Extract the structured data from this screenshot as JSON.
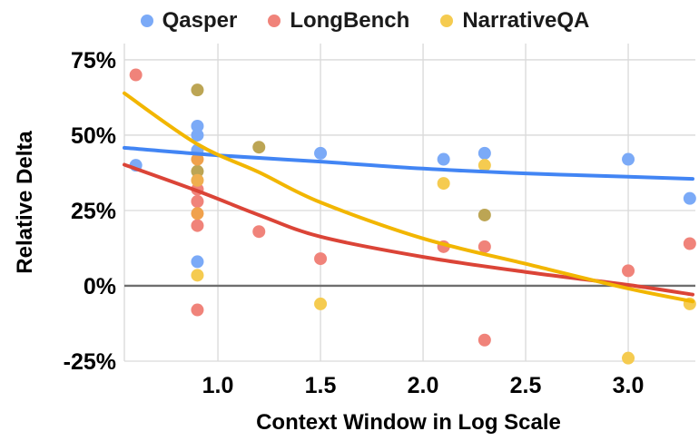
{
  "legend": {
    "position": "top",
    "items": [
      {
        "label": "Qasper",
        "color": "#7BAAF7"
      },
      {
        "label": "LongBench",
        "color": "#F0837A"
      },
      {
        "label": "NarrativeQA",
        "color": "#F5CB50"
      }
    ]
  },
  "chart_data": {
    "type": "scatter",
    "title": "",
    "xlabel": "Context Window in Log Scale",
    "ylabel": "Relative Delta",
    "xlim": [
      0.544,
      3.314
    ],
    "ylim": [
      -25,
      80.4
    ],
    "grid": true,
    "legend_position": "top",
    "x_ticks": [
      1.0,
      1.5,
      2.0,
      2.5,
      3.0
    ],
    "x_tick_labels": [
      "1.0",
      "1.5",
      "2.0",
      "2.5",
      "3.0"
    ],
    "y_ticks": [
      75,
      50,
      25,
      0,
      -25
    ],
    "y_tick_labels": [
      "75%",
      "50%",
      "25%",
      "0%",
      "-25%"
    ],
    "zero_line_color": "#6E6E6E",
    "gridline_color": "#D9D9D9",
    "series": [
      {
        "name": "Qasper",
        "point_color": "#7BAAF7",
        "line_color": "#4285F4",
        "points": [
          [
            0.6,
            40
          ],
          [
            0.9,
            53
          ],
          [
            0.9,
            50
          ],
          [
            0.9,
            45
          ],
          [
            0.9,
            8
          ],
          [
            1.5,
            44
          ],
          [
            2.1,
            42
          ],
          [
            2.3,
            44
          ],
          [
            3.0,
            42
          ],
          [
            3.3,
            29
          ]
        ],
        "trend": [
          [
            0.544,
            45.8
          ],
          [
            1.0,
            43.3
          ],
          [
            1.5,
            41.2
          ],
          [
            2.0,
            38.9
          ],
          [
            2.5,
            37.3
          ],
          [
            3.0,
            36.2
          ],
          [
            3.314,
            35.5
          ]
        ]
      },
      {
        "name": "LongBench",
        "point_color": "#F0837A",
        "line_color": "#DB4437",
        "points": [
          [
            0.6,
            70
          ],
          [
            0.9,
            32
          ],
          [
            0.9,
            28
          ],
          [
            0.9,
            20
          ],
          [
            0.9,
            -8
          ],
          [
            1.2,
            18
          ],
          [
            1.5,
            9
          ],
          [
            2.1,
            13
          ],
          [
            2.3,
            13
          ],
          [
            2.3,
            -18
          ],
          [
            3.0,
            5
          ],
          [
            3.3,
            14
          ]
        ],
        "trend": [
          [
            0.544,
            40.2
          ],
          [
            0.9,
            31.5
          ],
          [
            1.2,
            23.5
          ],
          [
            1.5,
            16.3
          ],
          [
            2.0,
            9.6
          ],
          [
            2.5,
            4.6
          ],
          [
            3.0,
            0.3
          ],
          [
            3.314,
            -2.9
          ]
        ]
      },
      {
        "name": "NarrativeQA",
        "point_color": "#F5CB50",
        "line_color": "#F2B600",
        "points": [
          [
            0.9,
            3.5
          ],
          [
            1.5,
            -6
          ],
          [
            2.1,
            34
          ],
          [
            2.3,
            40
          ],
          [
            3.0,
            -24
          ],
          [
            3.3,
            -6
          ]
        ],
        "trend": [
          [
            0.544,
            63.9
          ],
          [
            0.9,
            47.0
          ],
          [
            1.2,
            37.7
          ],
          [
            1.5,
            27.7
          ],
          [
            2.0,
            15.7
          ],
          [
            2.5,
            7.3
          ],
          [
            3.0,
            -0.9
          ],
          [
            3.314,
            -5.2
          ]
        ]
      }
    ],
    "overlapping_points": [
      {
        "name": "overlap-olive",
        "apparent_color": "#BCA554",
        "points": [
          [
            0.9,
            65
          ],
          [
            0.9,
            38
          ],
          [
            1.2,
            46
          ],
          [
            2.3,
            23.5
          ]
        ]
      },
      {
        "name": "overlap-orange",
        "apparent_color": "#F0A14C",
        "points": [
          [
            0.9,
            42
          ],
          [
            0.9,
            24
          ]
        ]
      },
      {
        "name": "overlap-amber",
        "apparent_color": "#EFAF4F",
        "points": [
          [
            0.9,
            35
          ]
        ]
      }
    ]
  }
}
